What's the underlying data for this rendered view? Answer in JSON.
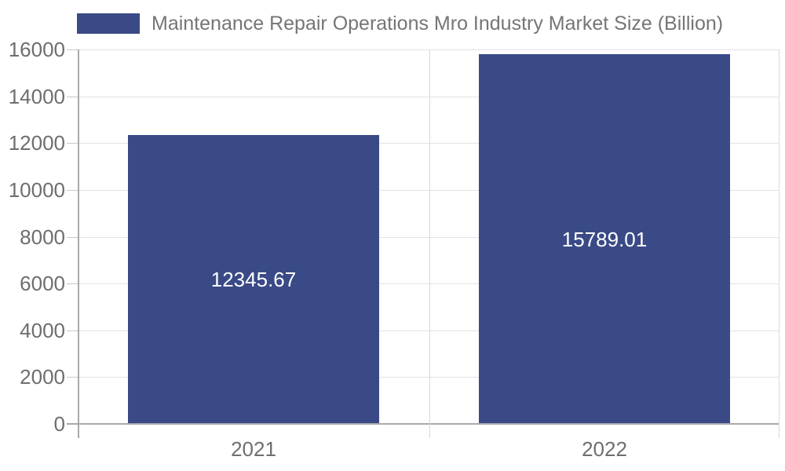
{
  "chart_data": {
    "type": "bar",
    "title": "Maintenance Repair Operations Mro Industry Market Size (Billion)",
    "categories": [
      "2021",
      "2022"
    ],
    "values": [
      12345.67,
      15789.01
    ],
    "value_labels": [
      "12345.67",
      "15789.01"
    ],
    "ylim": [
      0,
      16000
    ],
    "yticks": [
      0,
      2000,
      4000,
      6000,
      8000,
      10000,
      12000,
      14000,
      16000
    ],
    "grid": true,
    "legend_position": "top-left",
    "value_label_position": "center-of-bar"
  },
  "colors": {
    "bar": "#3A4A87",
    "value_label": "#FFFFFF",
    "title_text": "#757575",
    "tick_text": "#6E6E6E",
    "gridline": "#E3E3E5",
    "tick_mark": "#C9C9CC",
    "axis_line": "#A9A9AD",
    "divider": "#D9D9DC",
    "background": "#FFFFFF"
  }
}
